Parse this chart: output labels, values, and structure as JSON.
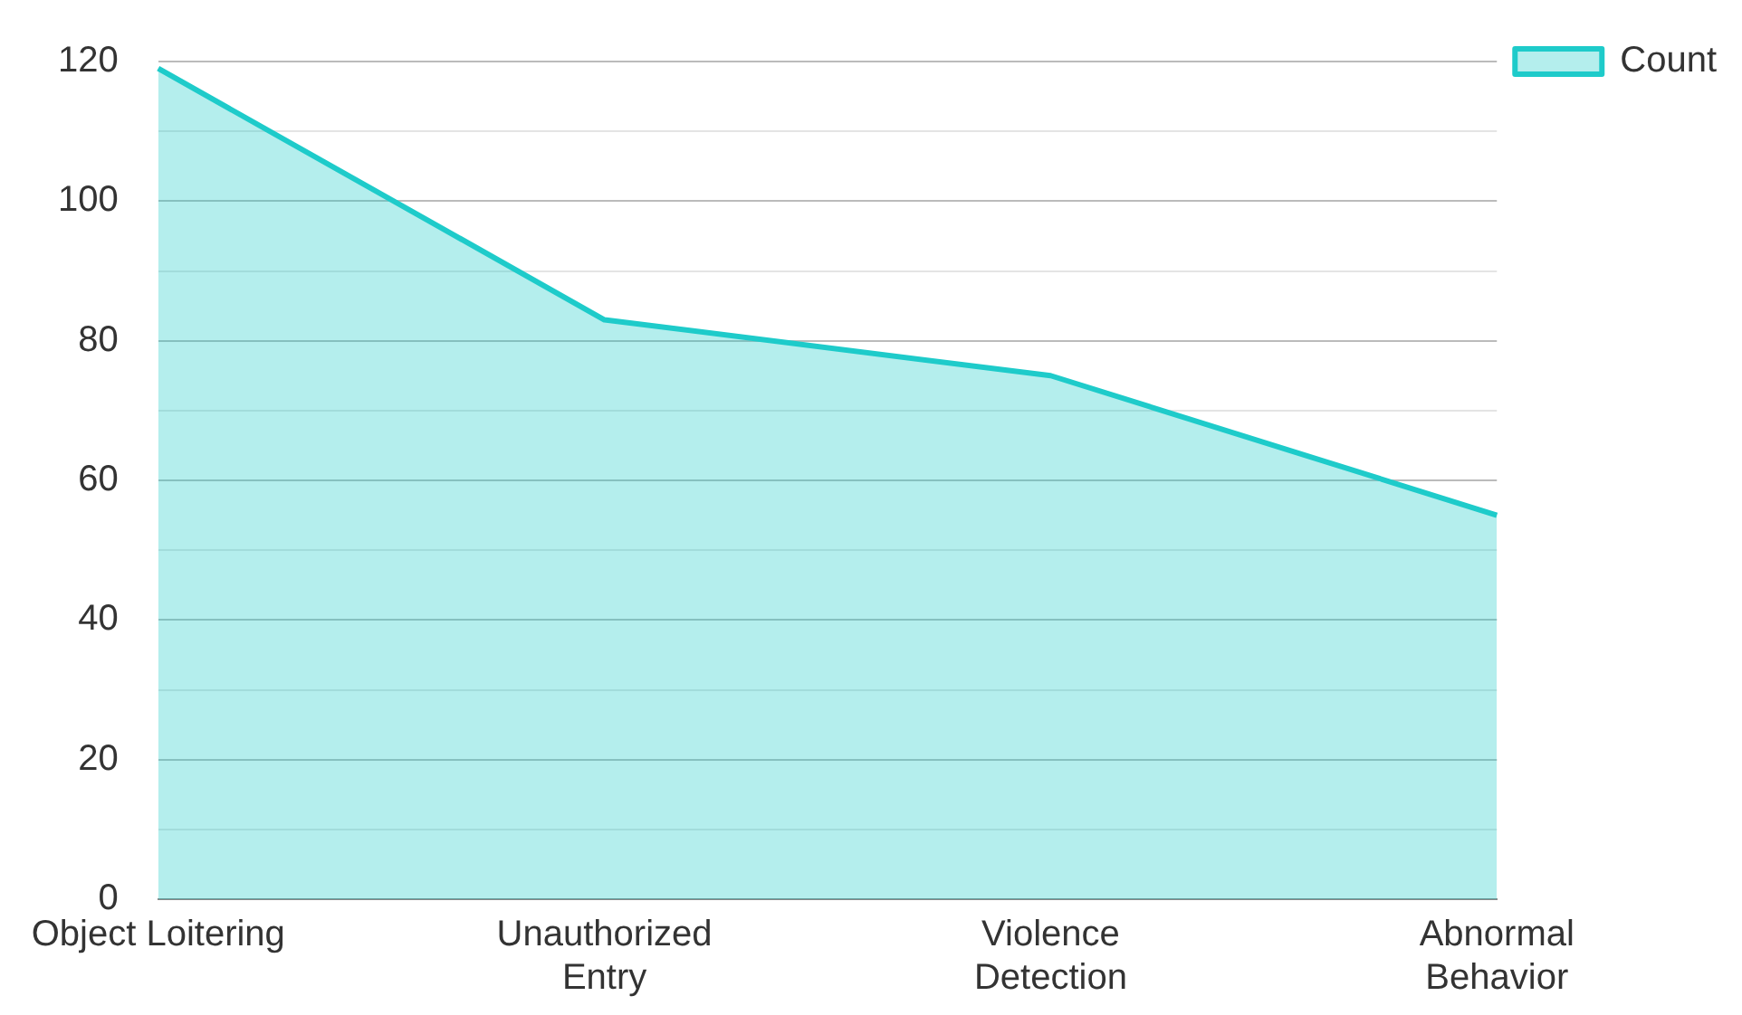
{
  "chart_data": {
    "type": "area",
    "categories": [
      "Object Loitering",
      "Unauthorized Entry",
      "Violence Detection",
      "Abnormal Behavior"
    ],
    "series": [
      {
        "name": "Count",
        "color": "#1ecbca",
        "values": [
          119,
          83,
          75,
          55
        ]
      }
    ],
    "ylim": [
      0,
      120
    ],
    "yticks": [
      0,
      {
        "value": 10,
        "label": null
      },
      20,
      {
        "value": 30,
        "label": null
      },
      40,
      {
        "value": 50,
        "label": null
      },
      60,
      {
        "value": 70,
        "label": null
      },
      80,
      {
        "value": 90,
        "label": null
      },
      100,
      {
        "value": 110,
        "label": null
      },
      120
    ],
    "grid": "y",
    "legend": "top right",
    "marker": "none",
    "line_style": "solid"
  }
}
